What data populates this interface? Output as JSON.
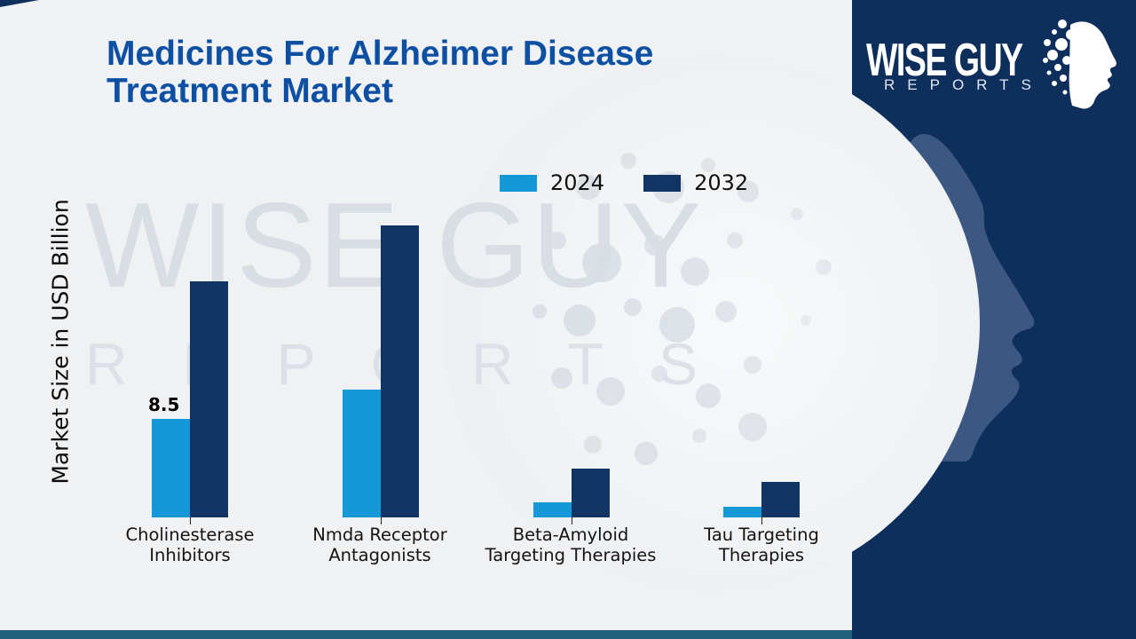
{
  "header": {
    "title": "Medicines For Alzheimer Disease Treatment Market"
  },
  "logo": {
    "brand_top": "WISE GUY",
    "brand_bottom": "REPORTS"
  },
  "watermark": {
    "line1": "WISE GUY",
    "line2": "REPORTS"
  },
  "chart_data": {
    "type": "bar",
    "title": "Medicines For Alzheimer Disease Treatment Market",
    "xlabel": "",
    "ylabel": "Market Size in USD Billion",
    "categories": [
      "Cholinesterase Inhibitors",
      "Nmda Receptor Antagonists",
      "Beta-Amyloid Targeting Therapies",
      "Tau Targeting Therapies"
    ],
    "series": [
      {
        "name": "2024",
        "color": "#1598D7",
        "values": [
          8.5,
          11.0,
          1.3,
          0.9
        ],
        "data_labels": [
          "8.5",
          "",
          "",
          ""
        ]
      },
      {
        "name": "2032",
        "color": "#103464",
        "values": [
          20.4,
          25.2,
          4.2,
          3.1
        ],
        "data_labels": [
          "",
          "",
          "",
          ""
        ]
      }
    ],
    "ylim": [
      0,
      28
    ],
    "grid": false,
    "y_axis_ticks_shown": false,
    "legend_position": "top-center"
  },
  "colors": {
    "background": "#F0F1F3",
    "title_blue": "#0D4FA3",
    "bar_2024": "#1598D7",
    "bar_2032": "#103464",
    "panel_navy": "#0E2F5C",
    "face_silhouette": "#3B5782",
    "teal_strip": "#20607A",
    "watermark_gray": "#D9DDE4"
  }
}
